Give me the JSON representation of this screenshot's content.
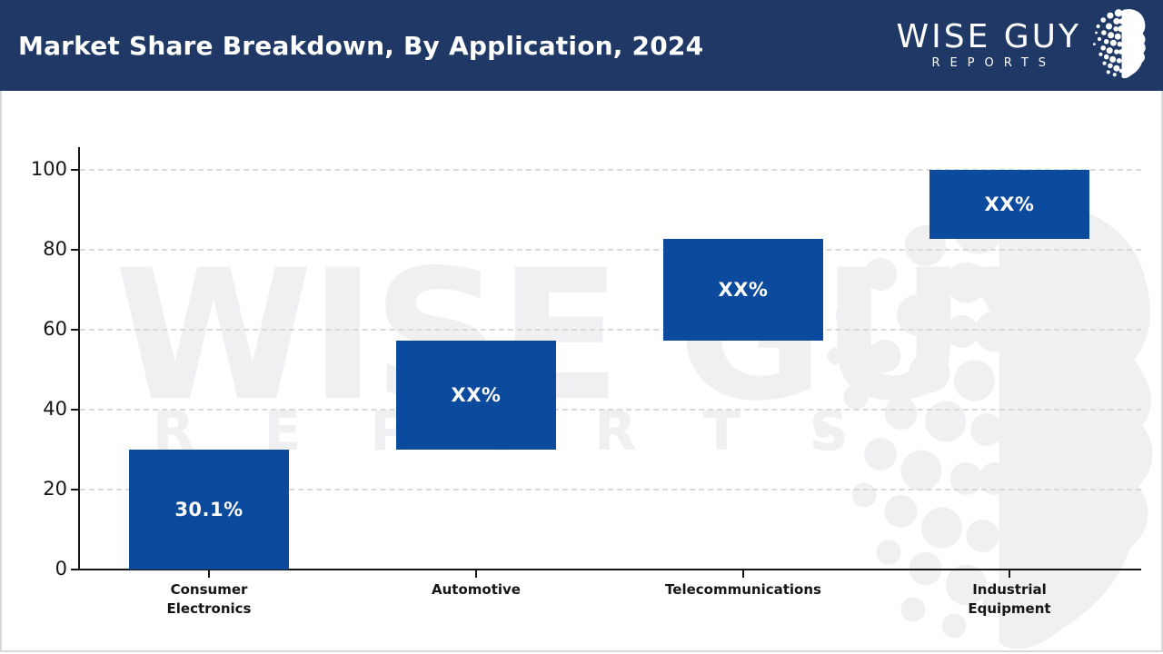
{
  "header": {
    "title": "Market Share Breakdown, By Application, 2024",
    "logo": {
      "name_top": "WISE GUY",
      "name_bottom": "REPORTS"
    }
  },
  "watermark": {
    "big_text": "WISE GUY",
    "sub_text": "REPORTS"
  },
  "colors": {
    "header_bg": "#1f3865",
    "bar": "#0c4a9e",
    "bar_label": "#ffffff",
    "grid": "#d9d9d9",
    "axis": "#151515",
    "watermark": "#f0f0f2",
    "frame_border": "#d9d9d9"
  },
  "chart_data": {
    "type": "bar",
    "subtype": "waterfall",
    "title": "Market Share Breakdown, By Application, 2024",
    "categories": [
      "Consumer Electronics",
      "Automotive",
      "Telecommunications",
      "Industrial Equipment"
    ],
    "category_label_lines": [
      [
        "Consumer",
        "Electronics"
      ],
      [
        "Automotive"
      ],
      [
        "Telecommunications"
      ],
      [
        "Industrial",
        "Equipment"
      ]
    ],
    "segments": [
      {
        "category": "Consumer Electronics",
        "start": 0,
        "end": 30.1,
        "label": "30.1%"
      },
      {
        "category": "Automotive",
        "start": 30.1,
        "end": 57.3,
        "label": "XX%"
      },
      {
        "category": "Telecommunications",
        "start": 57.3,
        "end": 82.7,
        "label": "XX%"
      },
      {
        "category": "Industrial Equipment",
        "start": 82.7,
        "end": 100,
        "label": "XX%"
      }
    ],
    "yticks": [
      0,
      20,
      40,
      60,
      80,
      100
    ],
    "ylim": [
      0,
      105
    ],
    "xlabel": "",
    "ylabel": "",
    "grid": "horizontal-dashed",
    "legend": "none",
    "bar_color": "#0c4a9e",
    "label_color": "#ffffff"
  }
}
